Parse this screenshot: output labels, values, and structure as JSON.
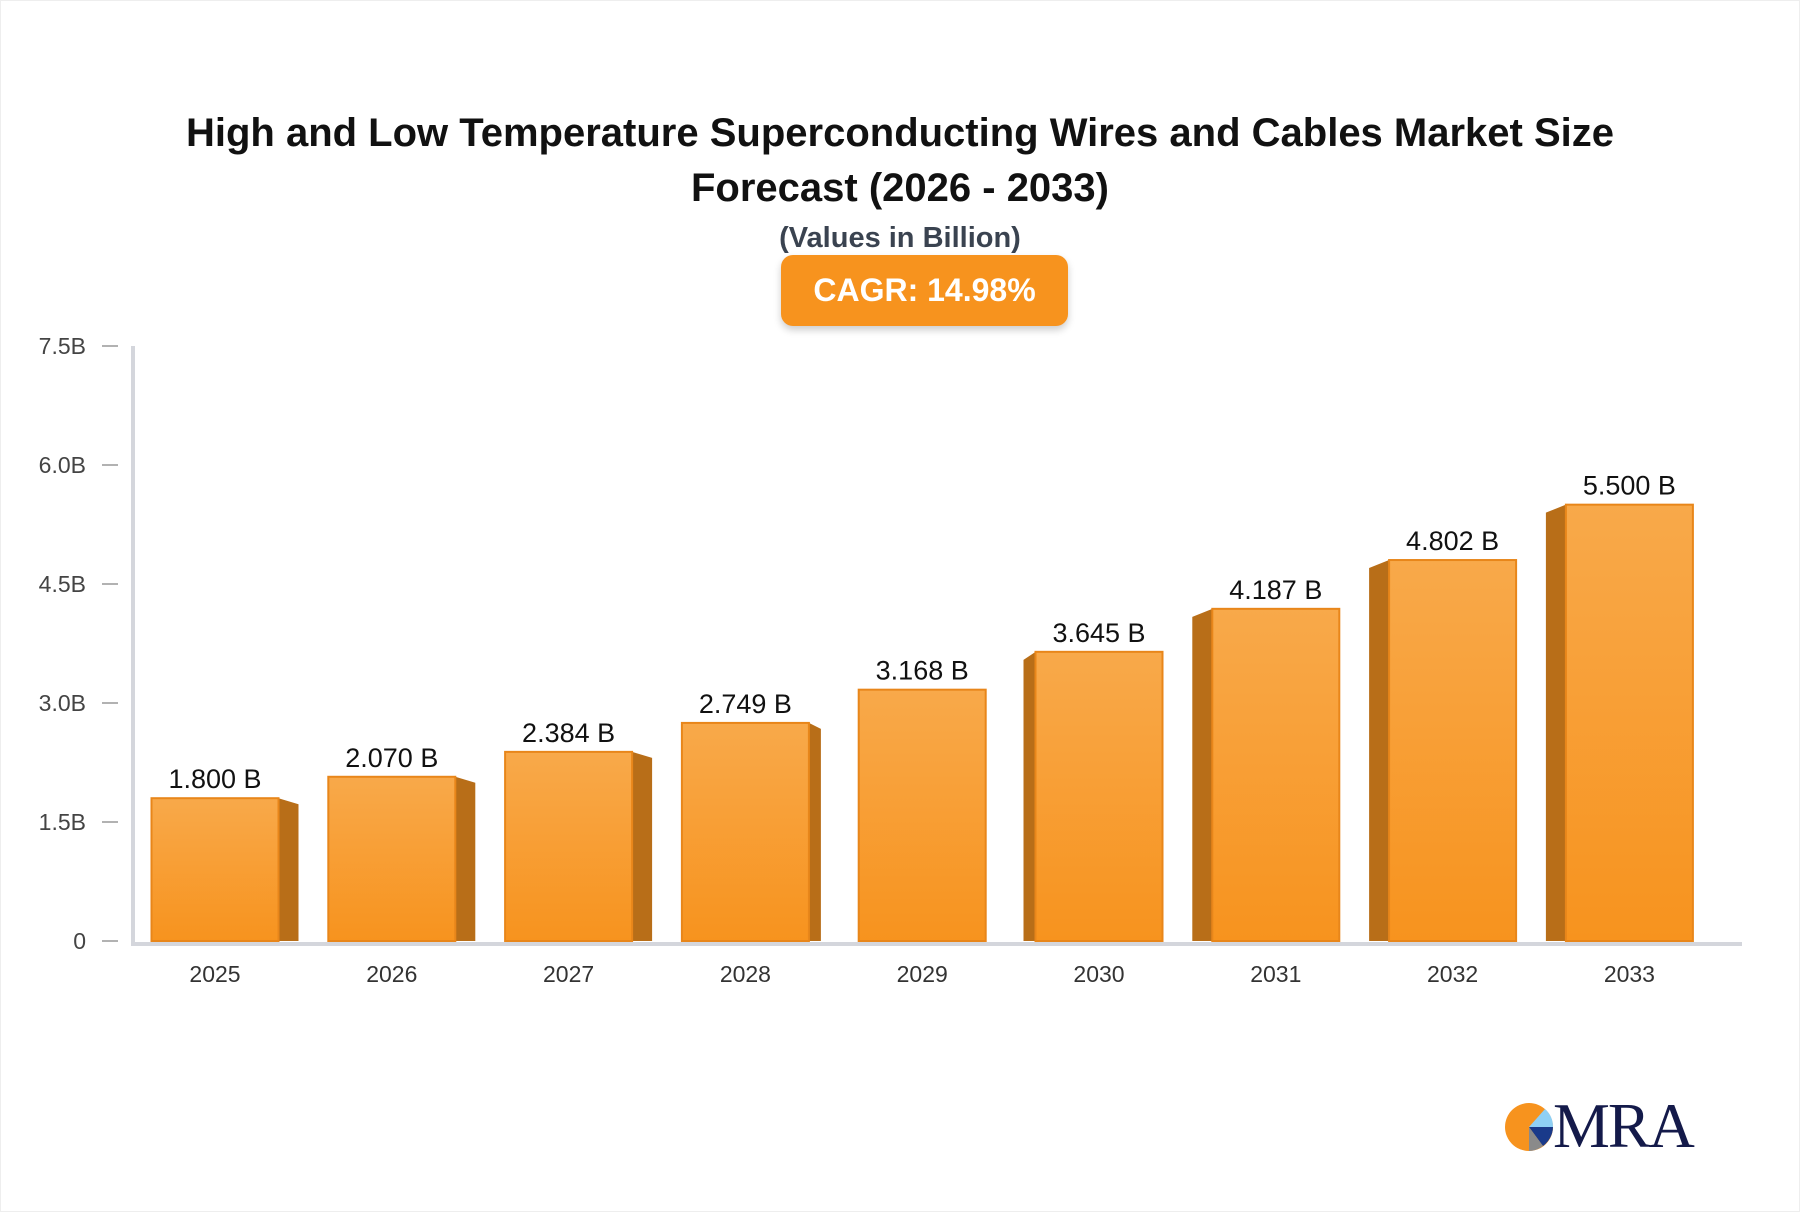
{
  "chart_data": {
    "type": "bar",
    "title": "High and Low Temperature Superconducting Wires and Cables Market Size Forecast (2026 - 2033)",
    "subtitle": "(Values in Billion)",
    "annotation": "CAGR: 14.98%",
    "categories": [
      "2025",
      "2026",
      "2027",
      "2028",
      "2029",
      "2030",
      "2031",
      "2032",
      "2033"
    ],
    "values": [
      1.8,
      2.07,
      2.384,
      2.749,
      3.168,
      3.645,
      4.187,
      4.802,
      5.5
    ],
    "data_labels": [
      "1.800 B",
      "2.070 B",
      "2.384 B",
      "2.749 B",
      "3.168 B",
      "3.645 B",
      "4.187 B",
      "4.802 B",
      "5.500 B"
    ],
    "yticks": [
      0,
      1.5,
      3.0,
      4.5,
      6.0,
      7.5
    ],
    "ytick_labels": [
      "0",
      "1.5B",
      "3.0B",
      "4.5B",
      "6.0B",
      "7.5B"
    ],
    "ylim": [
      0,
      7.5
    ],
    "grid": false,
    "colors": {
      "bar_top": "#f8a94a",
      "bar_bottom": "#f7931e",
      "bar_side": "#b86e18",
      "axis": "#d4d6dc"
    }
  },
  "logo": {
    "text": "MRA"
  }
}
